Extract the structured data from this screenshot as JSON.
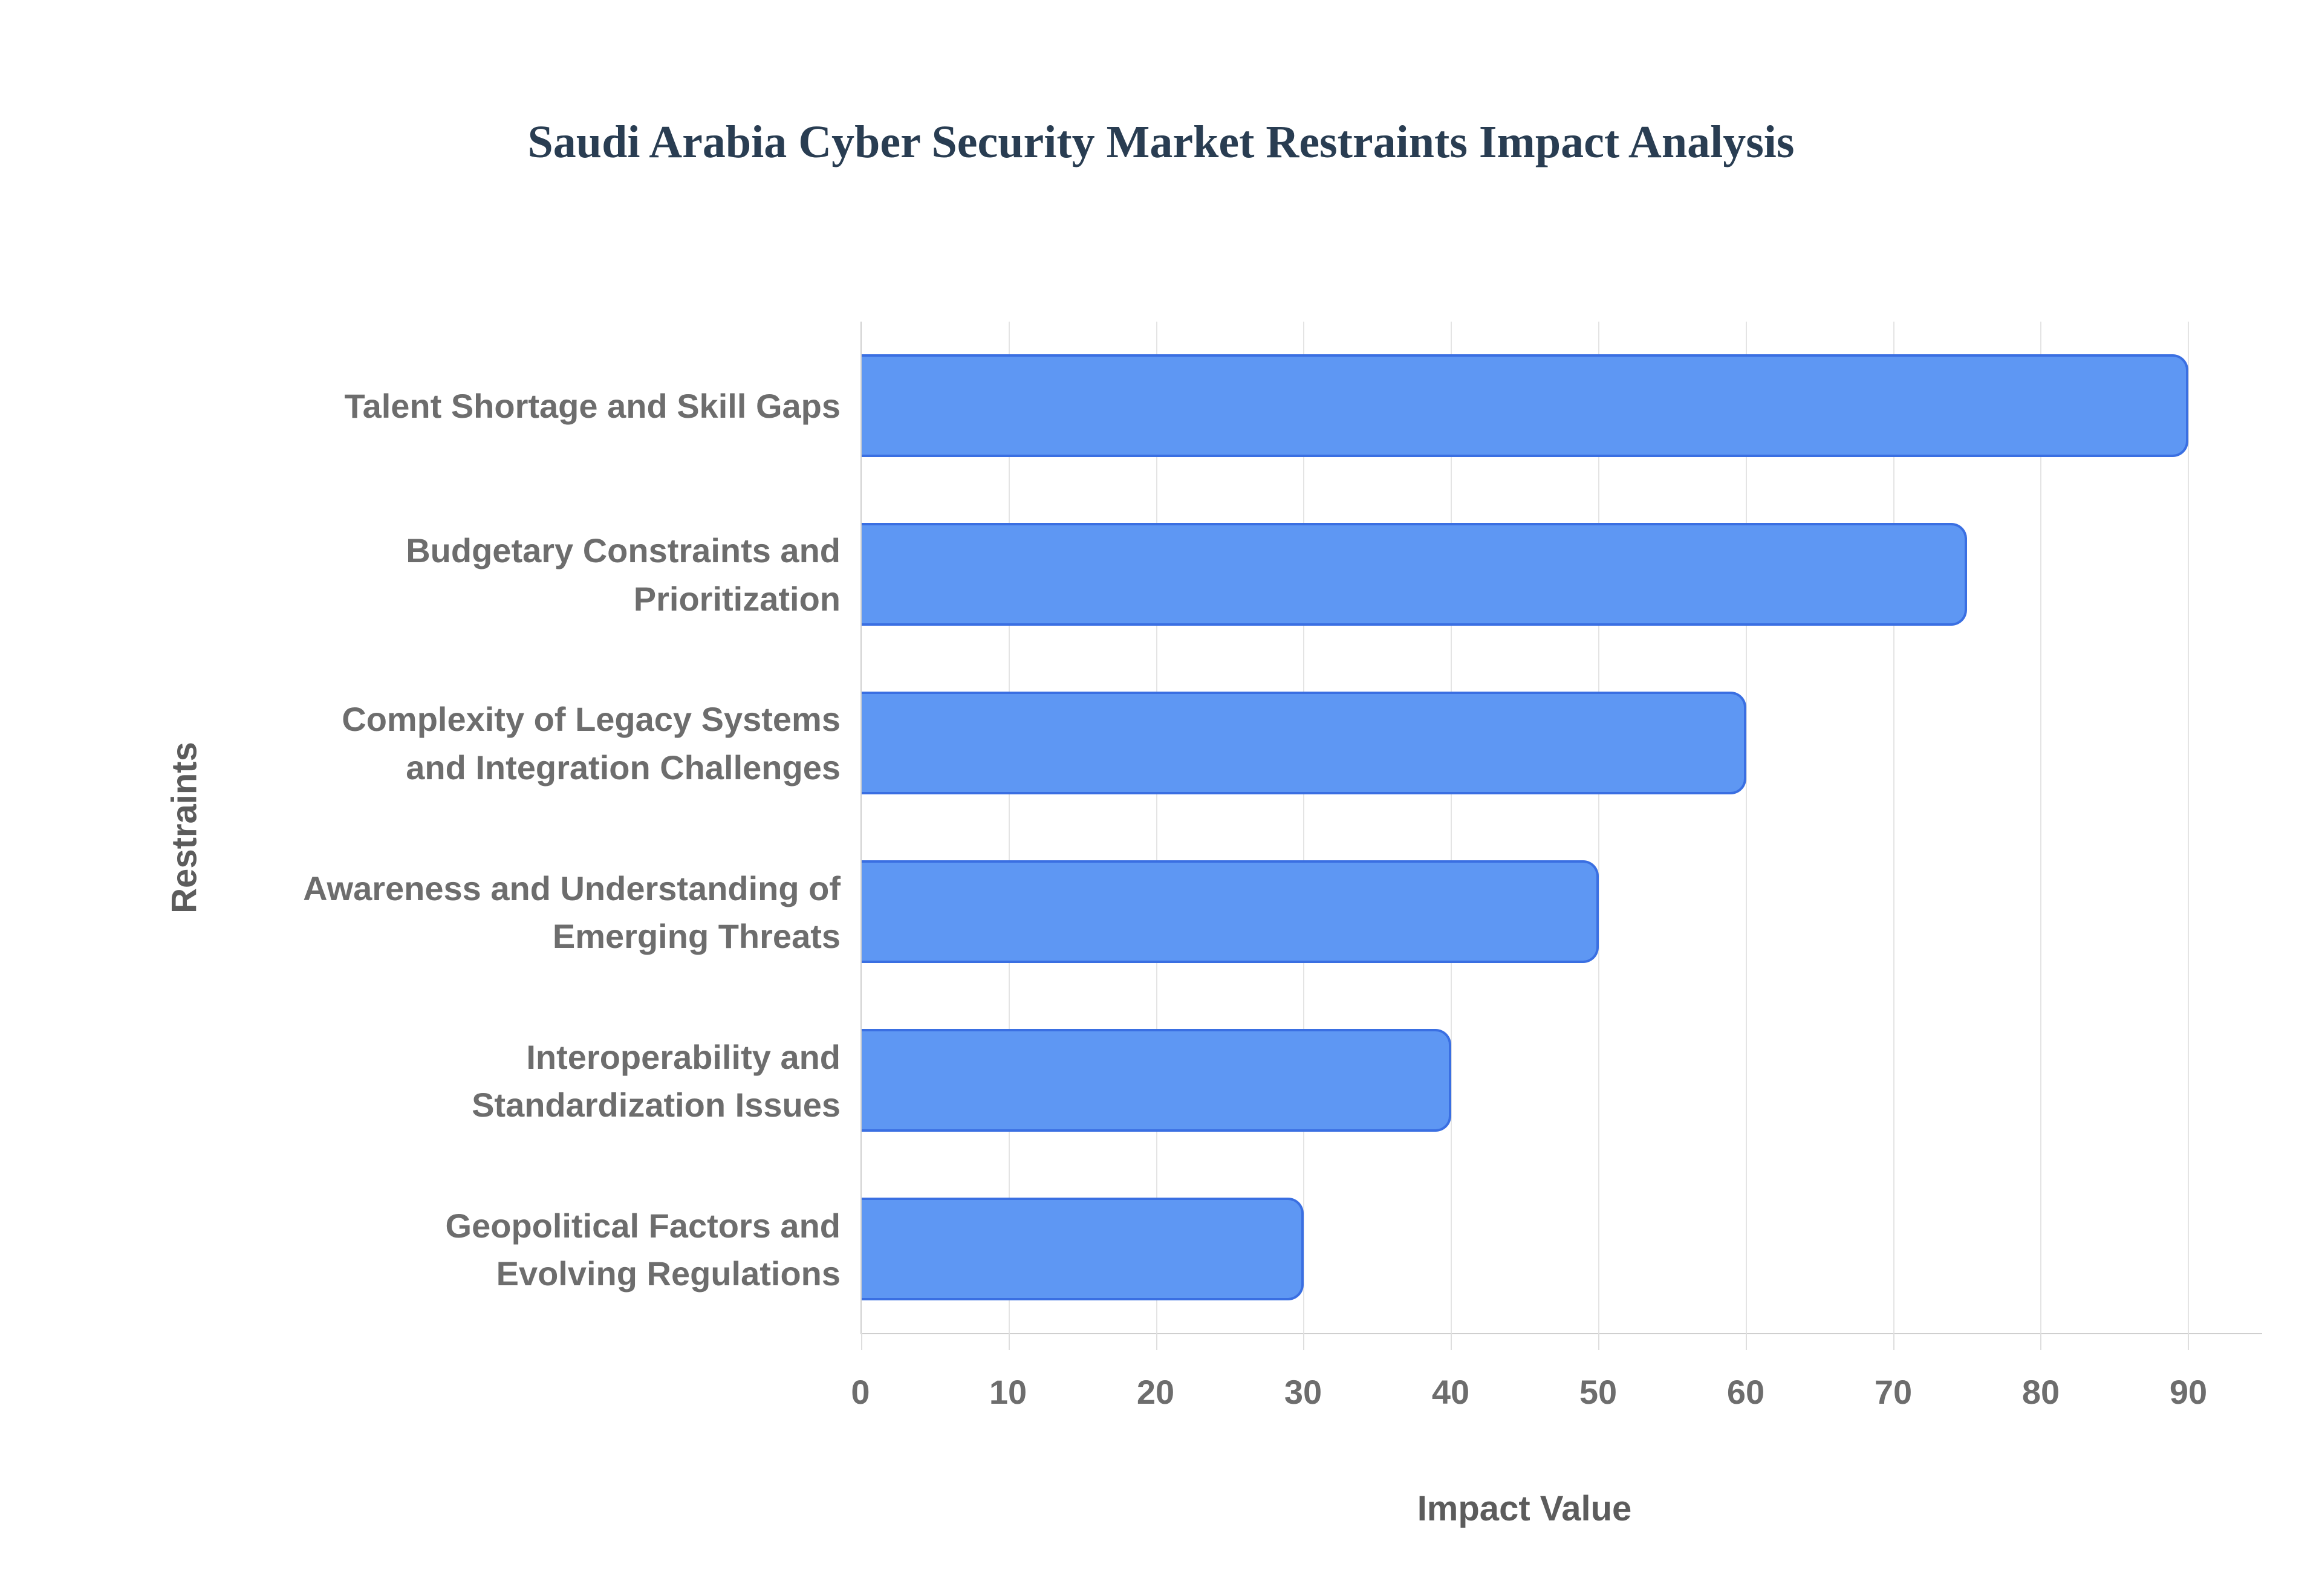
{
  "chart_data": {
    "type": "bar",
    "orientation": "horizontal",
    "title": "Saudi Arabia Cyber Security Market Restraints Impact Analysis",
    "xlabel": "Impact Value",
    "ylabel": "Restraints",
    "categories": [
      "Talent Shortage and Skill Gaps",
      "Budgetary Constraints and Prioritization",
      "Complexity of Legacy Systems and Integration Challenges",
      "Awareness and Understanding of Emerging Threats",
      "Interoperability and Standardization Issues",
      "Geopolitical Factors and Evolving Regulations"
    ],
    "category_lines": [
      [
        "Talent Shortage and Skill Gaps"
      ],
      [
        "Budgetary Constraints and",
        "Prioritization"
      ],
      [
        "Complexity of Legacy Systems",
        "and Integration Challenges"
      ],
      [
        "Awareness and Understanding of",
        "Emerging Threats"
      ],
      [
        "Interoperability and",
        "Standardization Issues"
      ],
      [
        "Geopolitical Factors and",
        "Evolving Regulations"
      ]
    ],
    "values": [
      90,
      75,
      60,
      50,
      40,
      30
    ],
    "xlim": [
      0,
      95
    ],
    "xticks": [
      0,
      10,
      20,
      30,
      40,
      50,
      60,
      70,
      80,
      90
    ],
    "grid": true,
    "legend": "none",
    "colors": {
      "bar_fill": "#5e97f3",
      "bar_border": "#3a6fe2",
      "gridline": "#e4e4e4",
      "axis_line": "#cfcfcf",
      "title": "#293d52",
      "tick_label": "#6d6d6d",
      "axis_title": "#5c5c5c",
      "background": "#ffffff"
    }
  }
}
